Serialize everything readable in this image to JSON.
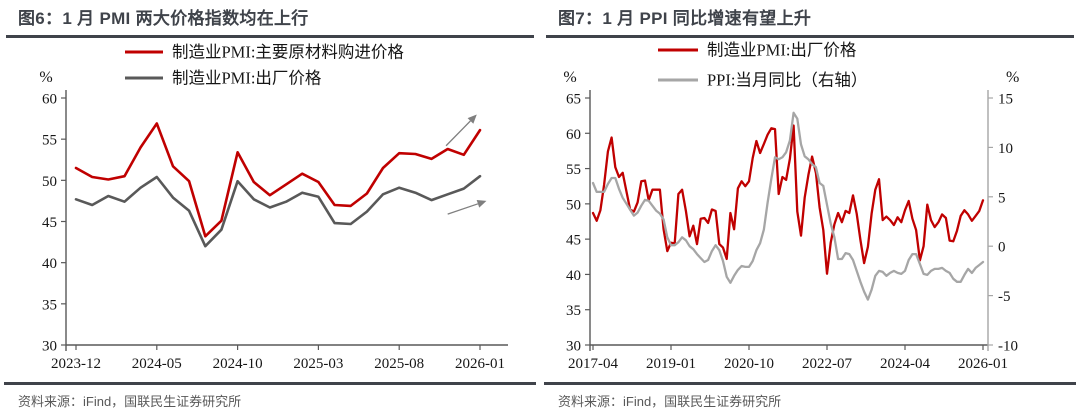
{
  "page": {
    "background": "#ffffff"
  },
  "figures": [
    {
      "title": "图6：1 月 PMI 两大价格指数均在上行",
      "source": "资料来源：iFind，国联民生证券研究所"
    },
    {
      "title": "图7：1 月 PPI 同比增速有望上升",
      "source": "资料来源：iFind，国联民生证券研究所"
    }
  ],
  "colors": {
    "red": "#c00000",
    "dark_gray": "#595959",
    "light_gray": "#a6a6a6",
    "axis": "#595959",
    "title": "#3f434a",
    "arrow": "#7f7f7f"
  },
  "chart_data": [
    {
      "id": "fig6",
      "type": "line",
      "title": "图6：1 月 PMI 两大价格指数均在上行",
      "ylabel": "%",
      "ylim": [
        30,
        60
      ],
      "yticks": [
        30,
        35,
        40,
        45,
        50,
        55,
        60
      ],
      "grid": false,
      "legend_position": "top",
      "x_range": [
        "2023-12",
        "2026-01"
      ],
      "frequency": "monthly",
      "x_tick_indices": [
        0,
        5,
        10,
        15,
        20,
        25
      ],
      "x_tick_labels": [
        "2023-12",
        "2024-05",
        "2024-10",
        "2025-03",
        "2025-08",
        "2026-01"
      ],
      "series": [
        {
          "name": "制造业PMI:主要原材料购进价格",
          "color": "#c00000",
          "axis": "left",
          "values": [
            51.5,
            50.4,
            50.1,
            50.5,
            54.0,
            56.9,
            51.7,
            49.9,
            43.2,
            45.1,
            53.4,
            49.8,
            48.2,
            49.5,
            50.8,
            49.8,
            47.0,
            46.9,
            48.4,
            51.5,
            53.3,
            53.2,
            52.6,
            53.8,
            53.1,
            56.1
          ]
        },
        {
          "name": "制造业PMI:出厂价格",
          "color": "#595959",
          "axis": "left",
          "values": [
            47.7,
            47.0,
            48.1,
            47.4,
            49.1,
            50.4,
            47.9,
            46.3,
            42.0,
            44.0,
            49.9,
            47.7,
            46.7,
            47.4,
            48.5,
            48.0,
            44.8,
            44.7,
            46.2,
            48.3,
            49.1,
            48.5,
            47.6,
            48.3,
            49.0,
            50.5
          ]
        }
      ],
      "annotations": [
        {
          "type": "arrow",
          "from_x": 22.9,
          "from_y": 54.2,
          "to_x": 24.8,
          "to_y": 58.0,
          "color": "#7f7f7f"
        },
        {
          "type": "arrow",
          "from_x": 23.0,
          "from_y": 45.9,
          "to_x": 25.4,
          "to_y": 47.5,
          "color": "#7f7f7f"
        }
      ]
    },
    {
      "id": "fig7",
      "type": "line",
      "title": "图7：1 月 PPI 同比增速有望上升",
      "ylabel_left": "%",
      "ylabel_right": "%",
      "ylim_left": [
        30,
        65
      ],
      "yticks_left": [
        30,
        35,
        40,
        45,
        50,
        55,
        60,
        65
      ],
      "ylim_right": [
        -10,
        15
      ],
      "yticks_right": [
        -10,
        -5,
        0,
        5,
        10,
        15
      ],
      "grid": false,
      "legend_position": "top",
      "x_range": [
        "2017-04",
        "2026-01"
      ],
      "frequency": "monthly",
      "x_tick_indices": [
        0,
        21,
        42,
        63,
        84,
        105
      ],
      "x_tick_labels": [
        "2017-04",
        "2019-01",
        "2020-10",
        "2022-07",
        "2024-04",
        "2026-01"
      ],
      "series": [
        {
          "name": "制造业PMI:出厂价格",
          "color": "#c00000",
          "axis": "left",
          "values": [
            48.7,
            47.6,
            49.1,
            52.7,
            57.4,
            59.4,
            55.2,
            53.8,
            54.4,
            51.8,
            49.2,
            48.9,
            50.2,
            53.2,
            53.3,
            50.5,
            52.0,
            52.0,
            52.0,
            46.4,
            43.3,
            44.5,
            44.4,
            51.4,
            52.0,
            49.0,
            45.4,
            46.9,
            44.3,
            47.9,
            48.0,
            47.3,
            49.2,
            49.0,
            44.3,
            43.8,
            42.2,
            48.7,
            46.4,
            52.2,
            53.2,
            52.5,
            53.2,
            56.5,
            58.9,
            57.2,
            58.5,
            59.8,
            60.7,
            60.6,
            51.4,
            53.8,
            53.4,
            56.4,
            61.1,
            48.9,
            45.5,
            50.9,
            54.1,
            56.7,
            54.4,
            49.5,
            46.3,
            40.1,
            44.5,
            47.1,
            48.7,
            47.4,
            49.0,
            48.7,
            51.2,
            48.6,
            44.9,
            41.6,
            43.9,
            48.6,
            52.0,
            53.5,
            47.7,
            48.2,
            47.7,
            47.0,
            48.1,
            47.4,
            49.1,
            50.4,
            47.9,
            46.3,
            42.0,
            44.0,
            49.9,
            47.7,
            46.7,
            47.4,
            48.5,
            48.0,
            44.8,
            44.7,
            46.2,
            48.3,
            49.1,
            48.5,
            47.6,
            48.3,
            49.0,
            50.5
          ]
        },
        {
          "name": "PPI:当月同比（右轴）",
          "color": "#a6a6a6",
          "axis": "right",
          "values": [
            6.4,
            5.5,
            5.5,
            5.5,
            6.3,
            6.9,
            6.9,
            5.8,
            4.9,
            4.3,
            3.7,
            3.1,
            3.4,
            4.1,
            4.7,
            4.6,
            4.1,
            3.6,
            3.3,
            2.7,
            0.9,
            0.1,
            0.1,
            0.4,
            0.9,
            0.6,
            0.0,
            -0.3,
            -0.8,
            -1.2,
            -1.6,
            -1.4,
            -0.5,
            0.1,
            -0.4,
            -1.5,
            -3.1,
            -3.7,
            -3.0,
            -2.4,
            -2.0,
            -2.1,
            -2.1,
            -1.5,
            -0.4,
            0.3,
            1.7,
            4.4,
            6.8,
            9.0,
            8.8,
            9.0,
            9.5,
            10.7,
            13.5,
            12.9,
            10.3,
            9.1,
            8.8,
            8.3,
            8.0,
            6.4,
            6.1,
            4.2,
            2.3,
            0.9,
            -1.3,
            -1.3,
            -0.7,
            -0.8,
            -1.4,
            -2.5,
            -3.6,
            -4.6,
            -5.4,
            -4.4,
            -3.0,
            -2.5,
            -2.6,
            -3.0,
            -2.7,
            -2.5,
            -2.7,
            -2.8,
            -2.5,
            -1.4,
            -0.8,
            -0.8,
            -1.8,
            -2.8,
            -2.9,
            -2.5,
            -2.3,
            -2.3,
            -2.2,
            -2.5,
            -2.7,
            -3.3,
            -3.6,
            -3.6,
            -2.9,
            -2.3,
            -2.7,
            -2.2,
            -1.9,
            -1.6
          ]
        }
      ],
      "annotations": []
    }
  ]
}
